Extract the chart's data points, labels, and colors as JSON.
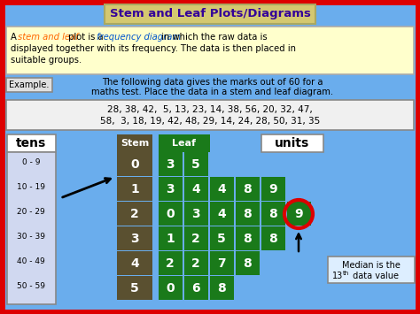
{
  "title": "Stem and Leaf Plots/Diagrams",
  "bg_color": "#6aaded",
  "border_color": "#dd0000",
  "title_bg": "#d4c870",
  "title_text_color": "#330099",
  "desc_line1_pre": "A ",
  "desc_highlight1": "stem and leaf",
  "desc_line1_mid": " plot is a ",
  "desc_highlight2": "frequency diagram",
  "desc_line1_post": " in which the raw data is",
  "desc_line2": "displayed together with its frequency. The data is then placed in",
  "desc_line3": "suitable groups.",
  "highlight1_color": "#ff6600",
  "highlight2_color": "#0055cc",
  "example_label": "Example.",
  "example_line1": "The following data gives the marks out of 60 for a",
  "example_line2": "maths test. Place the data in a stem and leaf diagram.",
  "data_line1": "28, 38, 42,  5, 13, 23, 14, 38, 56, 20, 32, 47,",
  "data_line2": "58,  3, 18, 19, 42, 48, 29, 14, 24, 28, 50, 31, 35",
  "tens_labels": [
    "0 - 9",
    "10 - 19",
    "20 - 29",
    "30 - 39",
    "40 - 49",
    "50 - 59"
  ],
  "stem_color": "#5a5030",
  "leaf_color": "#1a7a1a",
  "leaf_gap_color": "#6aaded",
  "stem_values": [
    "0",
    "1",
    "2",
    "3",
    "4",
    "5"
  ],
  "leaf_rows": [
    [
      "3",
      "5",
      "",
      "",
      "",
      ""
    ],
    [
      "3",
      "4",
      "4",
      "8",
      "9",
      ""
    ],
    [
      "0",
      "3",
      "4",
      "8",
      "8",
      "9"
    ],
    [
      "1",
      "2",
      "5",
      "8",
      "8",
      ""
    ],
    [
      "2",
      "2",
      "7",
      "8",
      "",
      ""
    ],
    [
      "0",
      "6",
      "8",
      "",
      "",
      ""
    ]
  ],
  "median_circle_color": "#dd0000",
  "median_row": 2,
  "median_col": 5,
  "median_text_line1": "Median is the",
  "median_text_line2": "13",
  "median_text_sup": "th",
  "median_text_line2b": " data value"
}
